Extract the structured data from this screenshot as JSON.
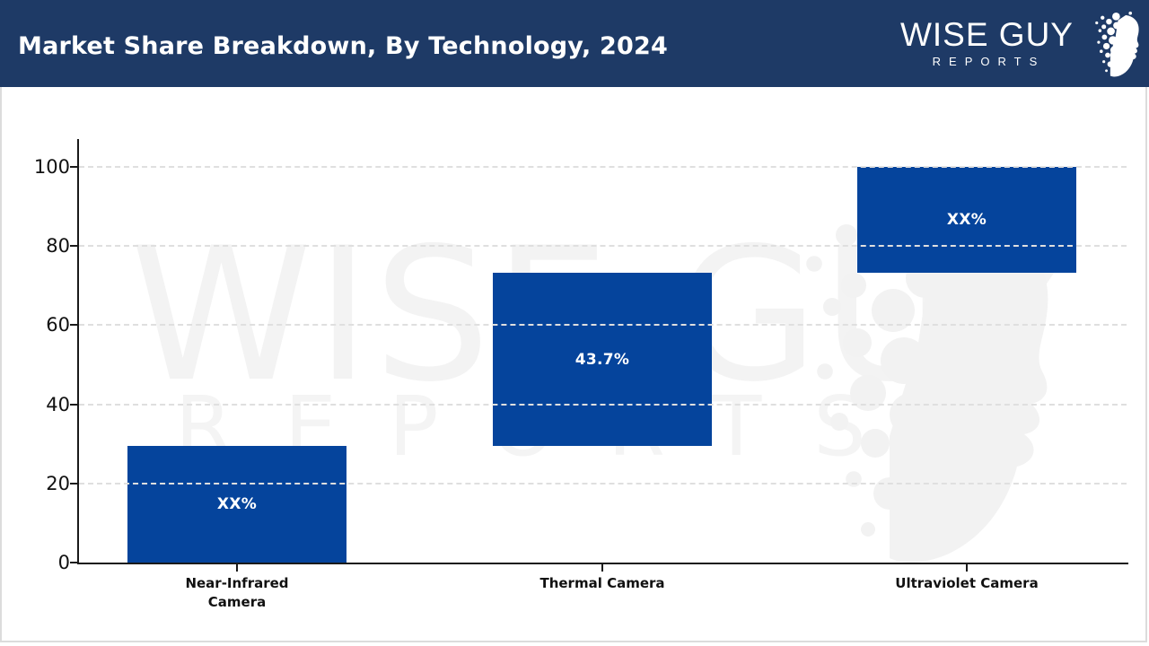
{
  "header": {
    "title": "Market Share Breakdown, By Technology, 2024",
    "bg_color": "#1e3a66"
  },
  "logo": {
    "line1": "WISE GUY",
    "line2": "REPORTS",
    "face_icon": "dotted-head-profile"
  },
  "watermark": {
    "line1": "WISE GUY",
    "line2": "REPORTS",
    "face_icon": "dotted-head-profile",
    "color": "#f3f3f3"
  },
  "chart_data": {
    "type": "bar",
    "variant": "floating-waterfall",
    "title": "Market Share Breakdown, By Technology, 2024",
    "categories": [
      "Near-Infrared Camera",
      "Thermal Camera",
      "Ultraviolet Camera"
    ],
    "series": [
      {
        "name": "Market share (%)",
        "segments": [
          {
            "category": "Near-Infrared Camera",
            "from": 0,
            "to": 29.5,
            "value_label": "XX%"
          },
          {
            "category": "Thermal Camera",
            "from": 29.5,
            "to": 73.2,
            "value_label": "43.7%"
          },
          {
            "category": "Ultraviolet Camera",
            "from": 73.2,
            "to": 100,
            "value_label": "XX%"
          }
        ]
      }
    ],
    "xlabel": "",
    "ylabel": "",
    "ylim": [
      0,
      107
    ],
    "yticks": [
      0,
      20,
      40,
      60,
      80,
      100
    ],
    "grid": "horizontal-dashed",
    "legend": false,
    "bar_color": "#05449c",
    "bar_label_color": "#ffffff",
    "axis_color": "#1a1a1a",
    "gridline_color": "#dfdfdf"
  }
}
